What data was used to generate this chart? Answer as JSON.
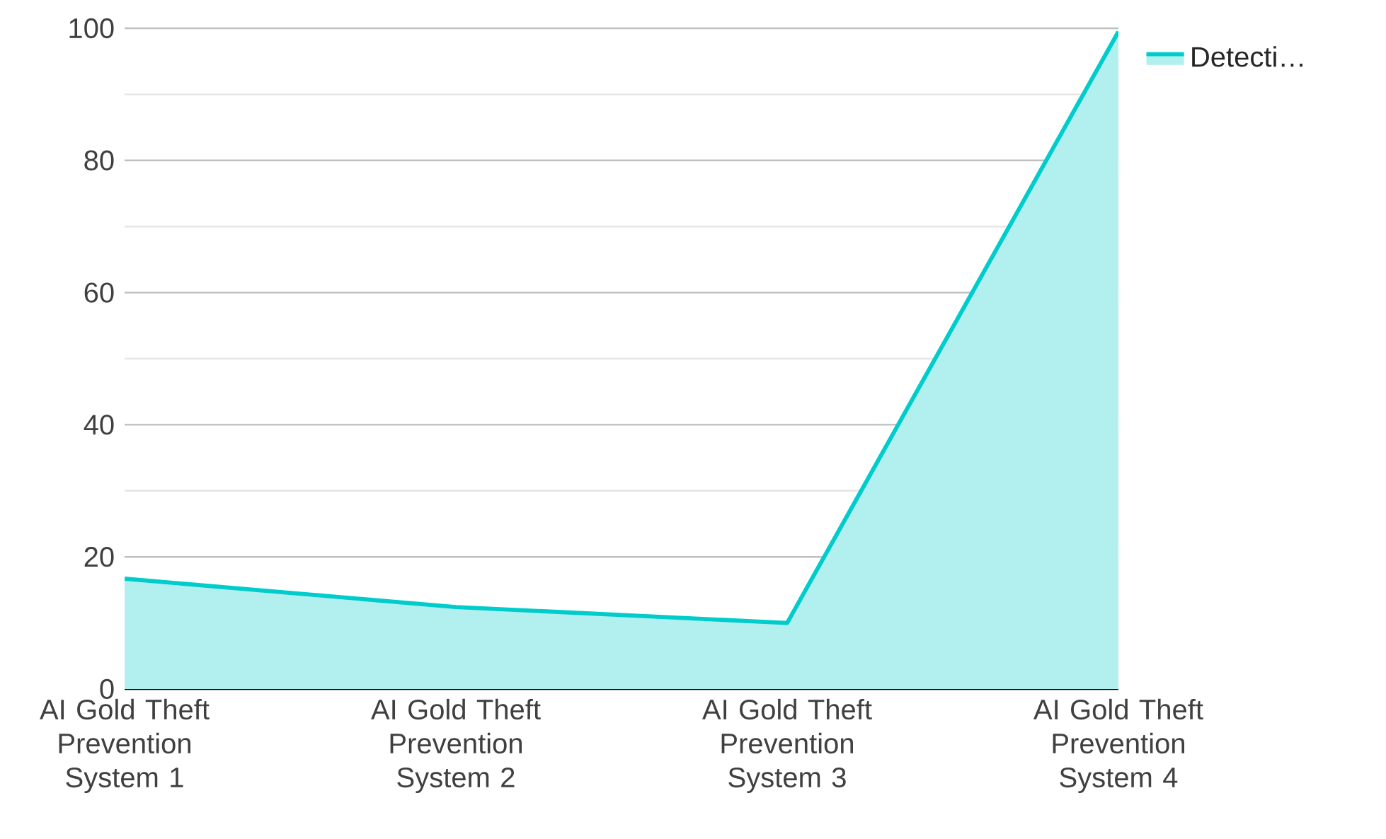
{
  "chart_data": {
    "type": "area",
    "categories": [
      "AI Gold Theft Prevention System 1",
      "AI Gold Theft Prevention System 2",
      "AI Gold Theft Prevention System 3",
      "AI Gold Theft Prevention System 4"
    ],
    "series": [
      {
        "name": "Detecti…",
        "color": "#00cccc",
        "values": [
          16.7,
          12.4,
          10.0,
          99.5
        ]
      }
    ],
    "ylim": [
      0,
      100
    ],
    "yticks": [
      0,
      20,
      40,
      60,
      80,
      100
    ],
    "grid": "y",
    "legend": "top right",
    "marker": "none"
  }
}
